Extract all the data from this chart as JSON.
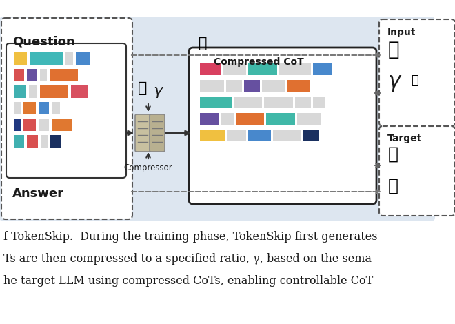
{
  "bg_color": "#dde6f0",
  "white": "#ffffff",
  "text_color": "#1a1a1a",
  "question_label": "Question",
  "answer_label": "Answer",
  "compressor_label": "Compressor",
  "compressed_cot_label": "Compressed CoT",
  "input_label": "Input",
  "target_label": "Target",
  "gamma_symbol": "γ",
  "token_rows_left": [
    [
      [
        "#f0c040",
        0.13
      ],
      [
        "#40b8b8",
        0.32
      ],
      [
        "#d8d8d8",
        0.08
      ],
      [
        "#4888cc",
        0.13
      ]
    ],
    [
      [
        "#d85050",
        0.1
      ],
      [
        "#6650a0",
        0.1
      ],
      [
        "#d8d8d8",
        0.07
      ],
      [
        "#e07030",
        0.28
      ]
    ],
    [
      [
        "#40b0b0",
        0.12
      ],
      [
        "#d8d8d8",
        0.08
      ],
      [
        "#e07030",
        0.28
      ],
      [
        "#d85060",
        0.16
      ]
    ],
    [
      [
        "#d8d8d8",
        0.07
      ],
      [
        "#e07830",
        0.12
      ],
      [
        "#4888cc",
        0.1
      ],
      [
        "#d8d8d8",
        0.08
      ]
    ],
    [
      [
        "#203880",
        0.07
      ],
      [
        "#d85050",
        0.12
      ],
      [
        "#d8d8d8",
        0.1
      ],
      [
        "#e07830",
        0.2
      ]
    ],
    [
      [
        "#40b0b0",
        0.1
      ],
      [
        "#d85050",
        0.11
      ],
      [
        "#d8d8d8",
        0.07
      ],
      [
        "#1a3060",
        0.1
      ]
    ]
  ],
  "token_rows_right": [
    [
      [
        "#d84060",
        0.13
      ],
      [
        "#d8d8d8",
        0.15
      ],
      [
        "#40b8a8",
        0.18
      ],
      [
        "#d8d8d8",
        0.2
      ],
      [
        "#4888cc",
        0.12
      ]
    ],
    [
      [
        "#d8d8d8",
        0.15
      ],
      [
        "#d8d8d8",
        0.1
      ],
      [
        "#6650a0",
        0.1
      ],
      [
        "#d8d8d8",
        0.15
      ],
      [
        "#e07030",
        0.14
      ]
    ],
    [
      [
        "#40b8a8",
        0.2
      ],
      [
        "#d8d8d8",
        0.18
      ],
      [
        "#d8d8d8",
        0.18
      ],
      [
        "#d8d8d8",
        0.1
      ],
      [
        "#d8d8d8",
        0.08
      ]
    ],
    [
      [
        "#6650a0",
        0.12
      ],
      [
        "#d8d8d8",
        0.08
      ],
      [
        "#e07030",
        0.18
      ],
      [
        "#40b8a8",
        0.18
      ],
      [
        "#d8d8d8",
        0.15
      ]
    ],
    [
      [
        "#f0c040",
        0.16
      ],
      [
        "#d8d8d8",
        0.12
      ],
      [
        "#4888cc",
        0.14
      ],
      [
        "#d8d8d8",
        0.18
      ],
      [
        "#1a3060",
        0.1
      ]
    ]
  ],
  "text_lines": [
    "f TokenSkip.  During the training phase, TokenSkip first generates",
    "Ts are then compressed to a specified ratio, γ, based on the sema",
    "he target LLM using compressed CoTs, enabling controllable CoT"
  ]
}
